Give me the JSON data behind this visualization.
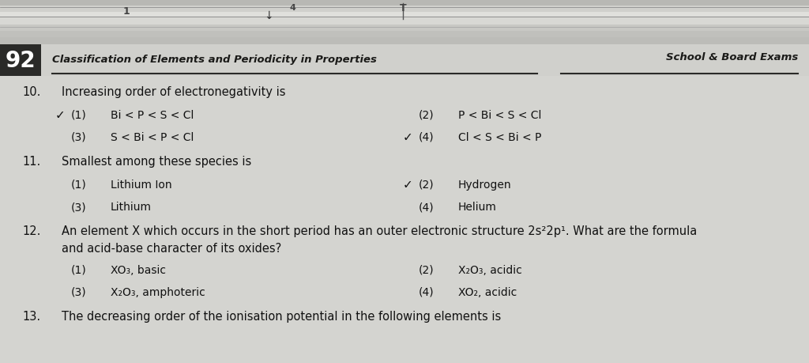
{
  "bg_top_color": "#c8c8c8",
  "bg_content_color": "#d8d8d8",
  "header_num": "92",
  "header_title": "Classification of Elements and Periodicity in Properties",
  "header_right": "School & Board Exams",
  "page_bg": "#e8e7e2",
  "header_bar_color": "#c5c5c5",
  "num_box_color": "#3a3a3a",
  "text_color": "#111111",
  "line_color": "#333333",
  "q10_text": "Increasing order of electronegativity is",
  "q10_opts": [
    {
      "label": "(1)",
      "text": "Bi < P < S < Cl",
      "col": 0,
      "checked": true
    },
    {
      "label": "(2)",
      "text": "P < Bi < S < Cl",
      "col": 1,
      "checked": false
    },
    {
      "label": "(3)",
      "text": "S < Bi < P < Cl",
      "col": 0,
      "checked": false
    },
    {
      "label": "(4)",
      "text": "Cl < S < Bi < P",
      "col": 1,
      "checked": true
    }
  ],
  "q11_text": "Smallest among these species is",
  "q11_opts": [
    {
      "label": "(1)",
      "text": "Lithium Ion",
      "col": 0,
      "checked": false
    },
    {
      "label": "(2)",
      "text": "Hydrogen",
      "col": 1,
      "checked": true
    },
    {
      "label": "(3)",
      "text": "Lithium",
      "col": 0,
      "checked": false
    },
    {
      "label": "(4)",
      "text": "Helium",
      "col": 1,
      "checked": false
    }
  ],
  "q12_text1": "An element X which occurs in the short period has an outer electronic structure 2s²2p¹. What are the formula",
  "q12_text2": "and acid-base character of its oxides?",
  "q12_opts": [
    {
      "label": "(1)",
      "text": "XO₃, basic",
      "col": 0,
      "checked": false
    },
    {
      "label": "(2)",
      "text": "X₂O₃, acidic",
      "col": 1,
      "checked": false
    },
    {
      "label": "(3)",
      "text": "X₂O₃, amphoteric",
      "col": 0,
      "checked": false
    },
    {
      "label": "(4)",
      "text": "XO₂, acidic",
      "col": 1,
      "checked": false
    }
  ],
  "q13_text": "The decreasing order of the ionisation potential in the following elements is"
}
